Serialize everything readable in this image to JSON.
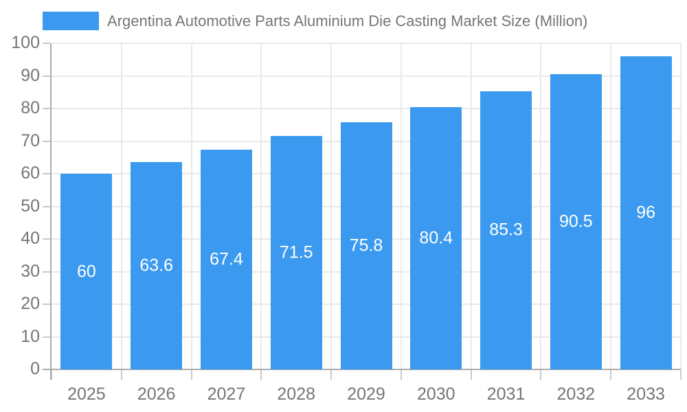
{
  "chart_data": {
    "type": "bar",
    "title": "Argentina Automotive Parts Aluminium Die Casting Market Size (Million)",
    "series": [
      {
        "name": "Argentina Automotive Parts Aluminium Die Casting Market Size (Million)",
        "values": [
          60,
          63.6,
          67.4,
          71.5,
          75.8,
          80.4,
          85.3,
          90.5,
          96
        ]
      }
    ],
    "categories": [
      "2025",
      "2026",
      "2027",
      "2028",
      "2029",
      "2030",
      "2031",
      "2032",
      "2033"
    ],
    "bar_value_labels": [
      "60",
      "63.6",
      "67.4",
      "71.5",
      "75.8",
      "80.4",
      "85.3",
      "90.5",
      "96"
    ],
    "xlabel": "",
    "ylabel": "",
    "ylim": [
      0,
      100
    ],
    "ytick_step": 10,
    "ytick_labels": [
      "0",
      "10",
      "20",
      "30",
      "40",
      "50",
      "60",
      "70",
      "80",
      "90",
      "100"
    ],
    "grid": true,
    "legend_position": "top-left",
    "colors": {
      "bar": "#3B9AF0",
      "grid": "#e9e9e9",
      "axis": "#ababab",
      "tick": "#c9c9c9",
      "axis_text": "#757575",
      "bar_label_text": "#ffffff",
      "background": "#ffffff"
    }
  }
}
